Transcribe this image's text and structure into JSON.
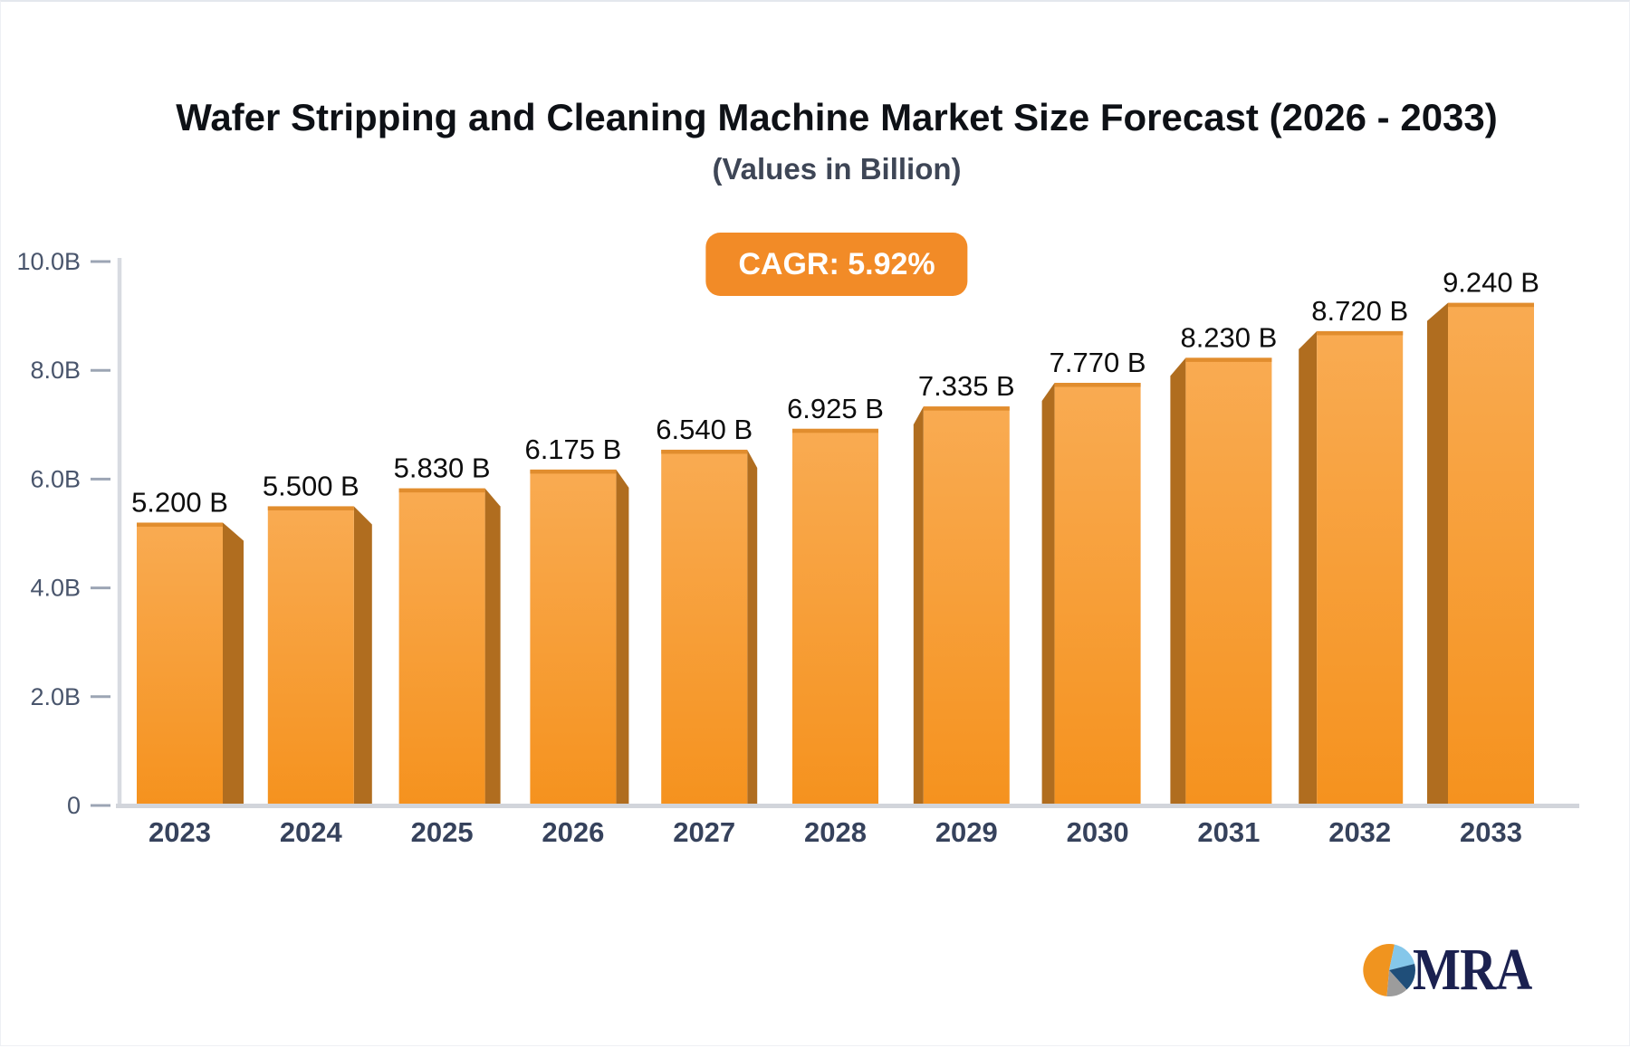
{
  "header": {
    "title": "Wafer Stripping and Cleaning Machine Market Size Forecast (2026 - 2033)",
    "subtitle": "(Values in Billion)",
    "cagr_label": "CAGR: 5.92%"
  },
  "chart_data": {
    "type": "bar",
    "title": "Wafer Stripping and Cleaning Machine Market Size Forecast (2026 - 2033)",
    "subtitle": "(Values in Billion)",
    "cagr": "5.92%",
    "unit": "Billion USD",
    "categories": [
      "2023",
      "2024",
      "2025",
      "2026",
      "2027",
      "2028",
      "2029",
      "2030",
      "2031",
      "2032",
      "2033"
    ],
    "values": [
      5.2,
      5.5,
      5.83,
      6.175,
      6.54,
      6.925,
      7.335,
      7.77,
      8.23,
      8.72,
      9.24
    ],
    "value_labels": [
      "5.200 B",
      "5.500 B",
      "5.830 B",
      "6.175 B",
      "6.540 B",
      "6.925 B",
      "7.335 B",
      "7.770 B",
      "8.230 B",
      "8.720 B",
      "9.240 B"
    ],
    "ytick_values": [
      0,
      2,
      4,
      6,
      8,
      10
    ],
    "ytick_labels": [
      "0",
      "2.0B",
      "4.0B",
      "6.0B",
      "8.0B",
      "10.0B"
    ],
    "ylim": [
      0,
      10
    ],
    "grid": false,
    "legend": "none",
    "bar_style": "3d-perspective, side faces point toward chart center"
  },
  "colors": {
    "bar_front_top": "#F9AB52",
    "bar_front_bottom": "#F5921E",
    "bar_top_edge": "#E18D2E",
    "bar_side": "#B06D1F",
    "badge_bg": "#F28B27",
    "badge_text": "#FFFFFF",
    "axis_line_v": "#D8DBE1",
    "axis_line_h": "#D2D5DB",
    "tick": "#9CA5B4",
    "axis_label": "#49556C",
    "year_label": "#36425C",
    "value_label": "#0D0D0D"
  },
  "logo": {
    "text": "MRA",
    "text_color": "#1B2150",
    "pie_colors": {
      "orange": "#F0941F",
      "light_blue": "#85C7EA",
      "navy": "#1F4E79",
      "gray": "#9C9C9C"
    }
  }
}
